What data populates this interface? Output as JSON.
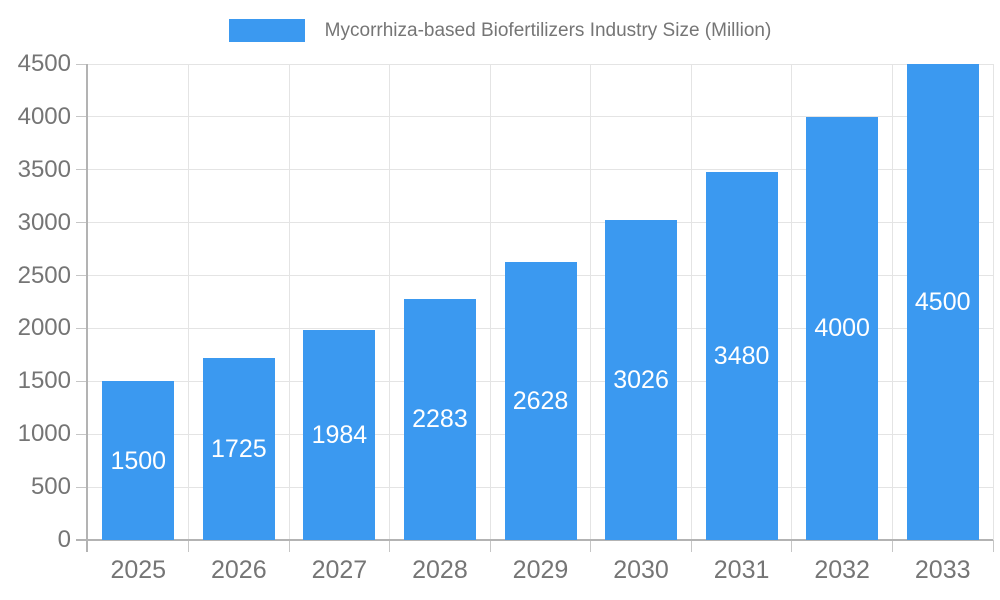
{
  "chart_data": {
    "type": "bar",
    "title": "Mycorrhiza-based Biofertilizers Industry Size (Million)",
    "categories": [
      "2025",
      "2026",
      "2027",
      "2028",
      "2029",
      "2030",
      "2031",
      "2032",
      "2033"
    ],
    "values": [
      1500,
      1725,
      1984,
      2283,
      2628,
      3026,
      3480,
      4000,
      4500
    ],
    "xlabel": "",
    "ylabel": "",
    "ylim": [
      0,
      4500
    ],
    "ytick_interval": 500,
    "grid": true,
    "legend_position": "top-center",
    "bar_labels_inside": true,
    "colors": {
      "bar": "#3B99F0",
      "bar_label": "#FFFFFF",
      "axis_text": "#757575",
      "gridline": "#E4E4E4",
      "axis_line": "#B3B3B3",
      "tick": "#C6C6C6"
    }
  }
}
